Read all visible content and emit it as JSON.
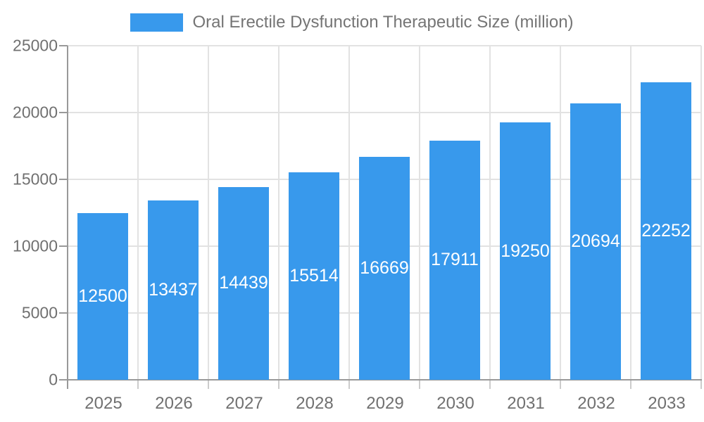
{
  "legend": {
    "label": "Oral Erectile Dysfunction Therapeutic Size (million)"
  },
  "chart_data": {
    "type": "bar",
    "title": "Oral Erectile Dysfunction Therapeutic Size (million)",
    "series": [
      {
        "name": "Oral Erectile Dysfunction Therapeutic Size (million)",
        "values": [
          12500,
          13437,
          14439,
          15514,
          16669,
          17911,
          19250,
          20694,
          22252
        ]
      }
    ],
    "categories": [
      "2025",
      "2026",
      "2027",
      "2028",
      "2029",
      "2030",
      "2031",
      "2032",
      "2033"
    ],
    "bar_value_labels": [
      "12500",
      "13437",
      "14439",
      "15514",
      "16669",
      "17911",
      "19250",
      "20694",
      "22252"
    ],
    "xlabel": "",
    "ylabel": "",
    "ylim": [
      0,
      25000
    ],
    "yticks": [
      0,
      5000,
      10000,
      15000,
      20000,
      25000
    ],
    "ytick_labels": [
      "0",
      "5000",
      "10000",
      "15000",
      "20000",
      "25000"
    ],
    "grid": true,
    "legend_position": "top-center",
    "colors": {
      "bar": "#3899ec",
      "bar_value_text": "#ffffff",
      "axis_line": "#999999",
      "y_tick": "#999999",
      "x_tick": "#cccccc",
      "gridline": "#e2e2e2",
      "tick_label_text": "#707070",
      "legend_text": "#757575",
      "background": "#ffffff"
    }
  }
}
